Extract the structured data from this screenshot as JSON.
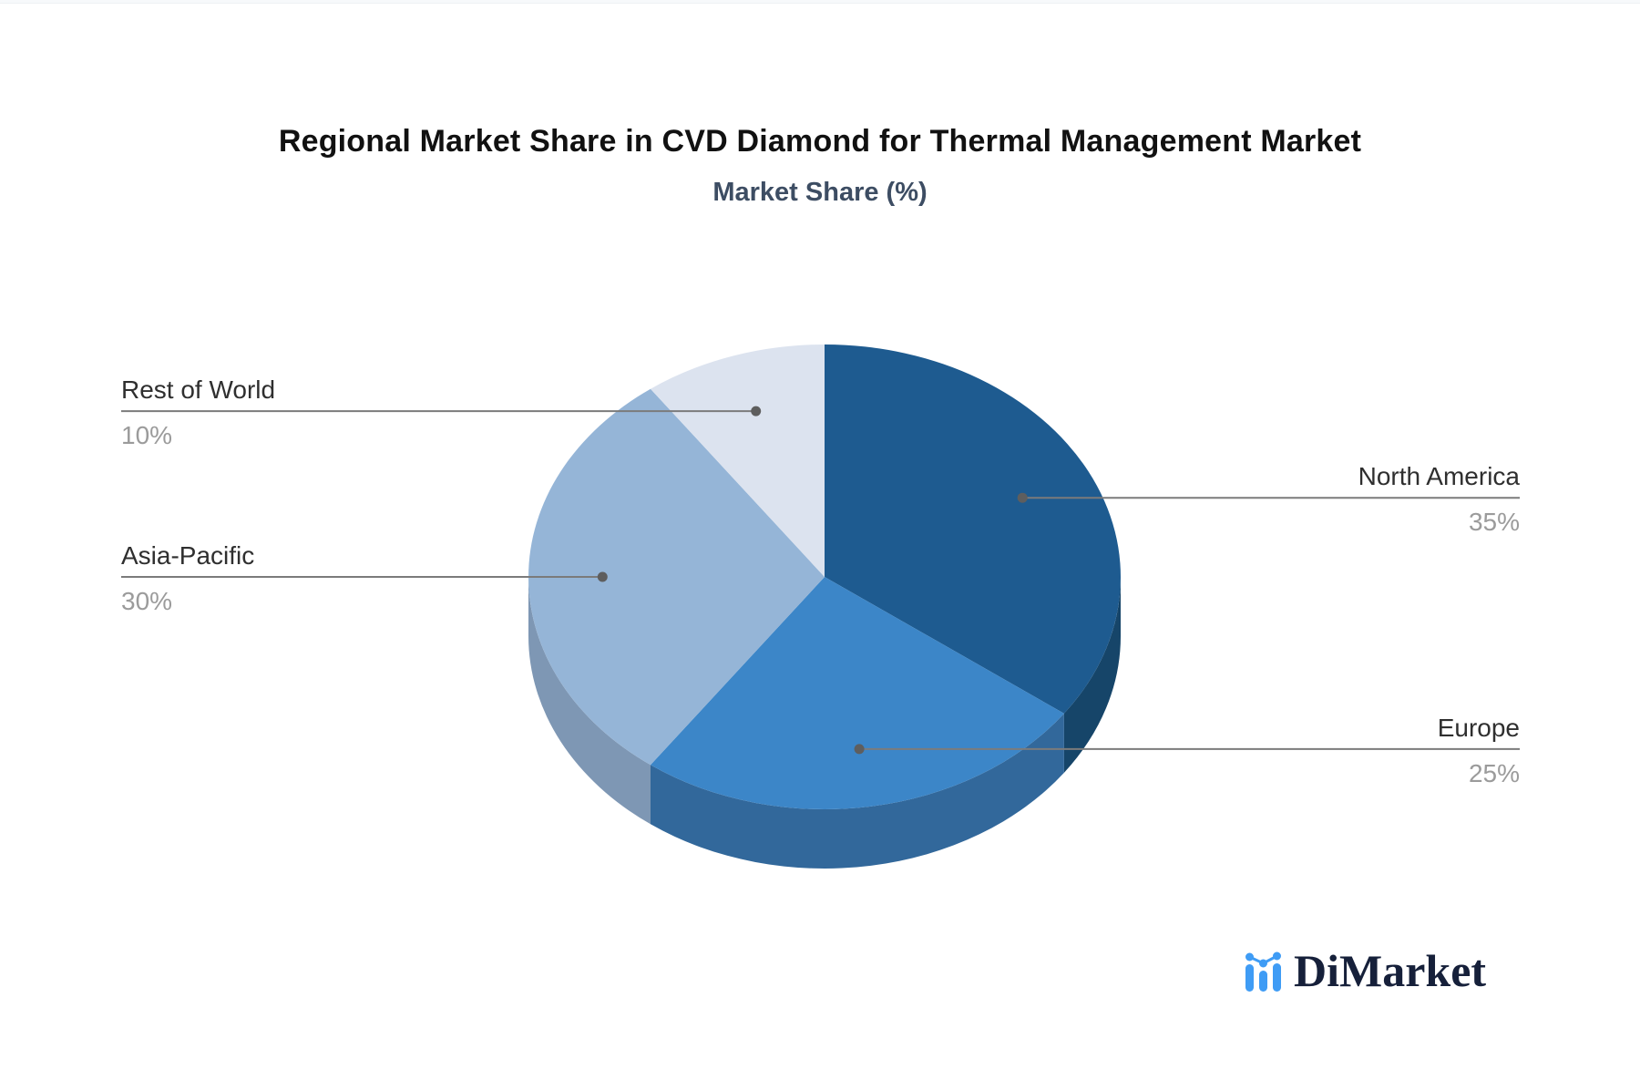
{
  "header": {
    "title": "Regional Market Share in CVD Diamond for Thermal Management Market",
    "subtitle": "Market Share (%)"
  },
  "chart_data": {
    "type": "pie",
    "title": "Regional Market Share in CVD Diamond for Thermal Management Market",
    "subtitle": "Market Share (%)",
    "unit": "%",
    "effect": "3d",
    "direction": "clockwise",
    "start_angle": "12 o'clock",
    "legend_position": "none (leader-line labels left and right)",
    "leader_line_color": "#7b7b7b",
    "dot_color": "#5e5e5e",
    "slices": [
      {
        "label": "North America",
        "value": 35,
        "pct_label": "35%",
        "color": "#1E5B90",
        "side_color": "#164569",
        "label_side": "right"
      },
      {
        "label": "Europe",
        "value": 25,
        "pct_label": "25%",
        "color": "#3C86C8",
        "side_color": "#32689B",
        "label_side": "right"
      },
      {
        "label": "Asia-Pacific",
        "value": 30,
        "pct_label": "30%",
        "color": "#95B5D7",
        "side_color": "#7E97B4",
        "label_side": "left"
      },
      {
        "label": "Rest of World",
        "value": 10,
        "pct_label": "10%",
        "color": "#DCE3EF",
        "side_color": "#B9C5D8",
        "label_side": "left"
      }
    ]
  },
  "logo": {
    "text": "DiMarket",
    "icon": "bar-line-chart-icon",
    "icon_color": "#3F9CF5",
    "text_color": "#16203a"
  }
}
